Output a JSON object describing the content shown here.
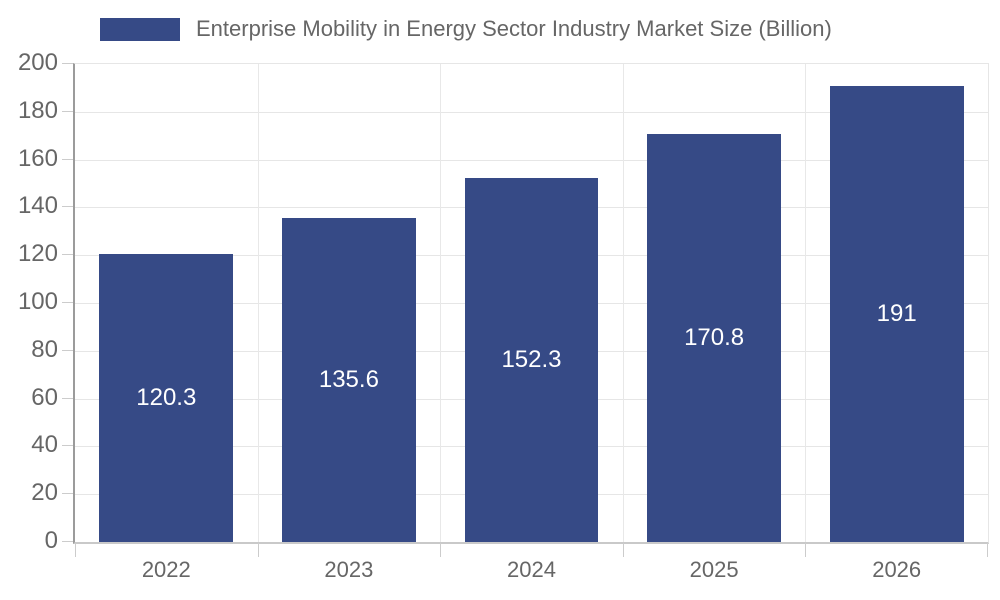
{
  "chart_data": {
    "type": "bar",
    "title": "Enterprise Mobility in Energy Sector Industry Market Size (Billion)",
    "categories": [
      "2022",
      "2023",
      "2024",
      "2025",
      "2026"
    ],
    "values": [
      120.3,
      135.6,
      152.3,
      170.8,
      191
    ],
    "value_labels": [
      "120.3",
      "135.6",
      "152.3",
      "170.8",
      "191"
    ],
    "xlabel": "",
    "ylabel": "",
    "ylim": [
      0,
      200
    ],
    "yticks": [
      0,
      20,
      40,
      60,
      80,
      100,
      120,
      140,
      160,
      180,
      200
    ],
    "grid": true,
    "legend_position": "top",
    "bar_color": "#364A86",
    "bar_label_color": "#ffffff",
    "axis_text_color": "#666666"
  }
}
